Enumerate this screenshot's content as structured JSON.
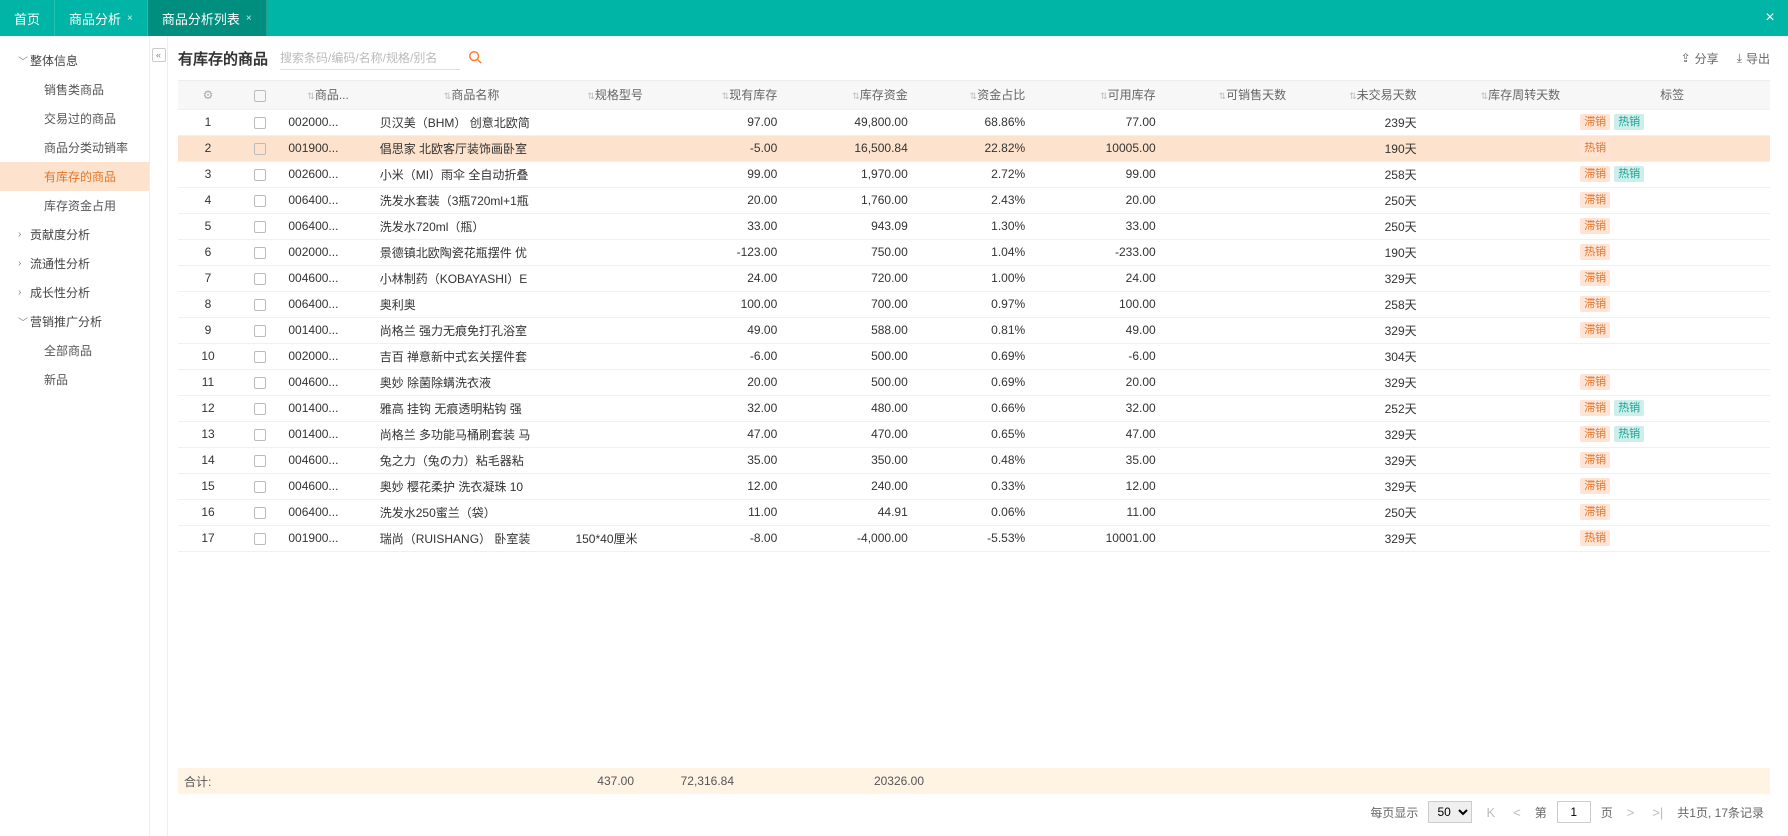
{
  "colors": {
    "primary": "#00b5a5",
    "primaryDark": "#008e7f",
    "highlight": "#fde3cd",
    "totalBg": "#fff3e4",
    "tagOrangeBg": "#ffe3d4",
    "tagOrangeFg": "#e0762a",
    "tagTealBg": "#cdeeea",
    "tagTealFg": "#1aa394"
  },
  "tabs": [
    {
      "label": "首页",
      "closeable": false,
      "active": false
    },
    {
      "label": "商品分析",
      "closeable": true,
      "active": false
    },
    {
      "label": "商品分析列表",
      "closeable": true,
      "active": true
    }
  ],
  "sidebar": [
    {
      "label": "整体信息",
      "expanded": true,
      "items": [
        {
          "label": "销售类商品"
        },
        {
          "label": "交易过的商品"
        },
        {
          "label": "商品分类动销率"
        },
        {
          "label": "有库存的商品",
          "active": true
        },
        {
          "label": "库存资金占用"
        }
      ]
    },
    {
      "label": "贡献度分析",
      "expanded": false
    },
    {
      "label": "流通性分析",
      "expanded": false
    },
    {
      "label": "成长性分析",
      "expanded": false
    },
    {
      "label": "营销推广分析",
      "expanded": true,
      "items": [
        {
          "label": "全部商品"
        },
        {
          "label": "新品"
        }
      ]
    }
  ],
  "page": {
    "title": "有库存的商品",
    "searchPlaceholder": "搜索条码/编码/名称/规格/别名",
    "actions": {
      "share": "分享",
      "export": "导出"
    }
  },
  "columns": [
    {
      "key": "idx",
      "label": "",
      "cls": "c-idx ctr",
      "gear": true
    },
    {
      "key": "chk",
      "label": "",
      "cls": "c-chk ctr",
      "checkbox": true
    },
    {
      "key": "code",
      "label": "商品...",
      "cls": "c-code",
      "sort": true
    },
    {
      "key": "name",
      "label": "商品名称",
      "cls": "c-name",
      "sort": true
    },
    {
      "key": "spec",
      "label": "规格型号",
      "cls": "c-spec",
      "sort": true
    },
    {
      "key": "stock",
      "label": "现有库存",
      "cls": "c-stock num",
      "sort": true
    },
    {
      "key": "fund",
      "label": "库存资金",
      "cls": "c-fund num",
      "sort": true
    },
    {
      "key": "pct",
      "label": "资金占比",
      "cls": "c-pct num",
      "sort": true
    },
    {
      "key": "avail",
      "label": "可用库存",
      "cls": "c-avail num",
      "sort": true
    },
    {
      "key": "saledays",
      "label": "可销售天数",
      "cls": "c-saledays num",
      "sort": true
    },
    {
      "key": "notx",
      "label": "未交易天数",
      "cls": "c-notx num",
      "sort": true
    },
    {
      "key": "turn",
      "label": "库存周转天数",
      "cls": "c-turn num",
      "sort": true
    },
    {
      "key": "tags",
      "label": "标签",
      "cls": "c-tags"
    }
  ],
  "tagDefs": {
    "slow": {
      "text": "滞销",
      "style": "orange"
    },
    "hot": {
      "text": "热销",
      "style": "teal"
    },
    "hotO": {
      "text": "热销",
      "style": "orange"
    }
  },
  "rows": [
    {
      "idx": 1,
      "code": "002000...",
      "name": "贝汉美（BHM） 创意北欧简",
      "spec": "",
      "stock": "97.00",
      "fund": "49,800.00",
      "pct": "68.86%",
      "avail": "77.00",
      "saledays": "",
      "notx": "239天",
      "turn": "",
      "tags": [
        "slow",
        "hot"
      ]
    },
    {
      "idx": 2,
      "code": "001900...",
      "name": "倡思家 北欧客厅装饰画卧室",
      "spec": "",
      "stock": "-5.00",
      "fund": "16,500.84",
      "pct": "22.82%",
      "avail": "10005.00",
      "saledays": "",
      "notx": "190天",
      "turn": "",
      "tags": [
        "hotO"
      ],
      "hl": true
    },
    {
      "idx": 3,
      "code": "002600...",
      "name": "小米（MI）雨伞 全自动折叠",
      "spec": "",
      "stock": "99.00",
      "fund": "1,970.00",
      "pct": "2.72%",
      "avail": "99.00",
      "saledays": "",
      "notx": "258天",
      "turn": "",
      "tags": [
        "slow",
        "hot"
      ]
    },
    {
      "idx": 4,
      "code": "006400...",
      "name": "洗发水套装（3瓶720ml+1瓶",
      "spec": "",
      "stock": "20.00",
      "fund": "1,760.00",
      "pct": "2.43%",
      "avail": "20.00",
      "saledays": "",
      "notx": "250天",
      "turn": "",
      "tags": [
        "slow"
      ]
    },
    {
      "idx": 5,
      "code": "006400...",
      "name": "洗发水720ml（瓶）",
      "spec": "",
      "stock": "33.00",
      "fund": "943.09",
      "pct": "1.30%",
      "avail": "33.00",
      "saledays": "",
      "notx": "250天",
      "turn": "",
      "tags": [
        "slow"
      ]
    },
    {
      "idx": 6,
      "code": "002000...",
      "name": "景德镇北欧陶瓷花瓶摆件 优",
      "spec": "",
      "stock": "-123.00",
      "fund": "750.00",
      "pct": "1.04%",
      "avail": "-233.00",
      "saledays": "",
      "notx": "190天",
      "turn": "",
      "tags": [
        "hotO"
      ]
    },
    {
      "idx": 7,
      "code": "004600...",
      "name": "小林制药（KOBAYASHI）E",
      "spec": "",
      "stock": "24.00",
      "fund": "720.00",
      "pct": "1.00%",
      "avail": "24.00",
      "saledays": "",
      "notx": "329天",
      "turn": "",
      "tags": [
        "slow"
      ]
    },
    {
      "idx": 8,
      "code": "006400...",
      "name": "奥利奥",
      "spec": "",
      "stock": "100.00",
      "fund": "700.00",
      "pct": "0.97%",
      "avail": "100.00",
      "saledays": "",
      "notx": "258天",
      "turn": "",
      "tags": [
        "slow"
      ]
    },
    {
      "idx": 9,
      "code": "001400...",
      "name": "尚格兰 强力无痕免打孔浴室",
      "spec": "",
      "stock": "49.00",
      "fund": "588.00",
      "pct": "0.81%",
      "avail": "49.00",
      "saledays": "",
      "notx": "329天",
      "turn": "",
      "tags": [
        "slow"
      ]
    },
    {
      "idx": 10,
      "code": "002000...",
      "name": "吉百 禅意新中式玄关摆件套",
      "spec": "",
      "stock": "-6.00",
      "fund": "500.00",
      "pct": "0.69%",
      "avail": "-6.00",
      "saledays": "",
      "notx": "304天",
      "turn": "",
      "tags": []
    },
    {
      "idx": 11,
      "code": "004600...",
      "name": "奥妙 除菌除螨洗衣液",
      "spec": "",
      "stock": "20.00",
      "fund": "500.00",
      "pct": "0.69%",
      "avail": "20.00",
      "saledays": "",
      "notx": "329天",
      "turn": "",
      "tags": [
        "slow"
      ]
    },
    {
      "idx": 12,
      "code": "001400...",
      "name": "雅高 挂钩 无痕透明粘钩 强",
      "spec": "",
      "stock": "32.00",
      "fund": "480.00",
      "pct": "0.66%",
      "avail": "32.00",
      "saledays": "",
      "notx": "252天",
      "turn": "",
      "tags": [
        "slow",
        "hot"
      ]
    },
    {
      "idx": 13,
      "code": "001400...",
      "name": "尚格兰 多功能马桶刷套装 马",
      "spec": "",
      "stock": "47.00",
      "fund": "470.00",
      "pct": "0.65%",
      "avail": "47.00",
      "saledays": "",
      "notx": "329天",
      "turn": "",
      "tags": [
        "slow",
        "hot"
      ]
    },
    {
      "idx": 14,
      "code": "004600...",
      "name": "兔之力（兔の力）粘毛器粘",
      "spec": "",
      "stock": "35.00",
      "fund": "350.00",
      "pct": "0.48%",
      "avail": "35.00",
      "saledays": "",
      "notx": "329天",
      "turn": "",
      "tags": [
        "slow"
      ]
    },
    {
      "idx": 15,
      "code": "004600...",
      "name": "奥妙 樱花柔护 洗衣凝珠 10",
      "spec": "",
      "stock": "12.00",
      "fund": "240.00",
      "pct": "0.33%",
      "avail": "12.00",
      "saledays": "",
      "notx": "329天",
      "turn": "",
      "tags": [
        "slow"
      ]
    },
    {
      "idx": 16,
      "code": "006400...",
      "name": "洗发水250蜜兰（袋）",
      "spec": "",
      "stock": "11.00",
      "fund": "44.91",
      "pct": "0.06%",
      "avail": "11.00",
      "saledays": "",
      "notx": "250天",
      "turn": "",
      "tags": [
        "slow"
      ]
    },
    {
      "idx": 17,
      "code": "001900...",
      "name": "瑞尚（RUISHANG） 卧室装",
      "spec": "150*40厘米",
      "stock": "-8.00",
      "fund": "-4,000.00",
      "pct": "-5.53%",
      "avail": "10001.00",
      "saledays": "",
      "notx": "329天",
      "turn": "",
      "tags": [
        "hotO"
      ]
    }
  ],
  "totals": {
    "label": "合计:",
    "stock": "437.00",
    "fund": "72,316.84",
    "pct": "",
    "avail": "20326.00"
  },
  "pager": {
    "perPageLabel": "每页显示",
    "perPage": "50",
    "pagePrefix": "第",
    "page": "1",
    "pageSuffix": "页",
    "summary": "共1页, 17条记录"
  }
}
